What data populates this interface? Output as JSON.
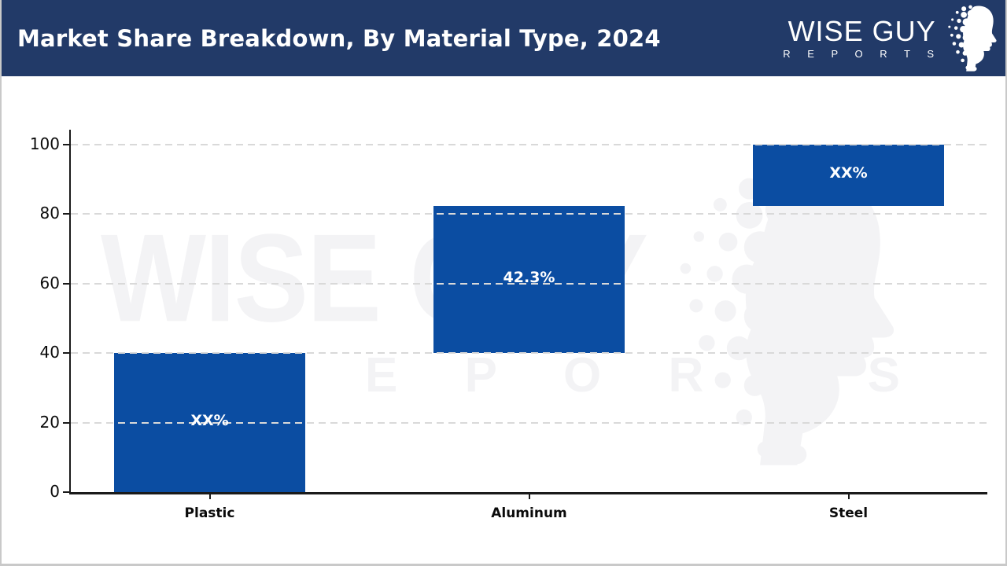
{
  "header": {
    "title": "Market Share Breakdown, By Material Type, 2024",
    "bg_color": "#223A68",
    "logo": {
      "line1": "WISE GUY",
      "line2": "R E P O R T S"
    }
  },
  "watermark": {
    "line1": "WISE GUY",
    "line2": "R E P O R T S"
  },
  "chart_data": {
    "type": "bar",
    "subtype": "waterfall",
    "title": "Market Share Breakdown, By Material Type, 2024",
    "xlabel": "",
    "ylabel": "",
    "categories": [
      "Plastic",
      "Aluminum",
      "Steel"
    ],
    "segments": [
      {
        "category": "Plastic",
        "start": 0,
        "end": 40,
        "label": "XX%"
      },
      {
        "category": "Aluminum",
        "start": 40,
        "end": 82.3,
        "label": "42.3%"
      },
      {
        "category": "Steel",
        "start": 82.3,
        "end": 100,
        "label": "XX%"
      }
    ],
    "yticks": [
      0,
      20,
      40,
      60,
      80,
      100
    ],
    "ylim": [
      0,
      104
    ],
    "grid": "horizontal-dashed",
    "legend": "none",
    "bar_color": "#0B4DA2",
    "label_color": "#ffffff",
    "gridline_color": "#d9d9d9",
    "axis_color": "#1a1a1a"
  }
}
